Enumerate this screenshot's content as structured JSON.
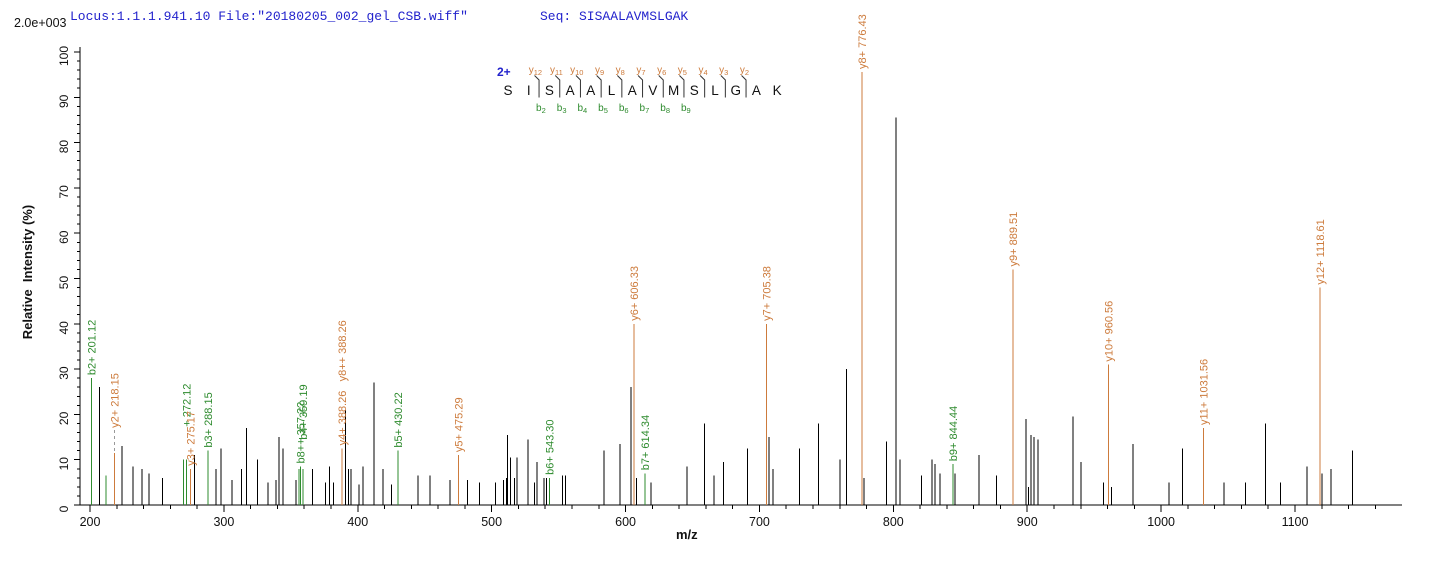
{
  "header": {
    "locus_file": "Locus:1.1.1.941.10 File:\"20180205_002_gel_CSB.wiff\"",
    "seq_label": "Seq: SISAALAVMSLGAK"
  },
  "colors": {
    "header_text": "#2222cc",
    "charge_label": "#2222cc",
    "y_ion": "#cd7b3c",
    "b_ion": "#2e8b2e",
    "peak_black": "#000000",
    "axis": "#000000",
    "leader_gray": "#999999",
    "divider": "#333333"
  },
  "sequence_annotation": {
    "charge": "2+",
    "residues": [
      "S",
      "I",
      "S",
      "A",
      "A",
      "L",
      "A",
      "V",
      "M",
      "S",
      "L",
      "G",
      "A",
      "K"
    ],
    "boundaries": [
      {
        "after_index": 1,
        "y_ion": "y12",
        "b_ion": "b2"
      },
      {
        "after_index": 2,
        "y_ion": "y11",
        "b_ion": "b3"
      },
      {
        "after_index": 3,
        "y_ion": "y10",
        "b_ion": "b4"
      },
      {
        "after_index": 4,
        "y_ion": "y9",
        "b_ion": "b5"
      },
      {
        "after_index": 5,
        "y_ion": "y8",
        "b_ion": "b6"
      },
      {
        "after_index": 6,
        "y_ion": "y7",
        "b_ion": "b7"
      },
      {
        "after_index": 7,
        "y_ion": "y6",
        "b_ion": "b8"
      },
      {
        "after_index": 8,
        "y_ion": "y5",
        "b_ion": "b9"
      },
      {
        "after_index": 9,
        "y_ion": "y4",
        "b_ion": null
      },
      {
        "after_index": 10,
        "y_ion": "y3",
        "b_ion": null
      },
      {
        "after_index": 11,
        "y_ion": "y2",
        "b_ion": null
      }
    ]
  },
  "chart_data": {
    "type": "bar",
    "subtype": "mass-spectrum-stick-plot",
    "title": "",
    "xlabel": "m/z",
    "ylabel": "Relative  Intensity (%)",
    "intensity_reference": "2.0e+003",
    "x_range": [
      192,
      1178
    ],
    "x_ticks_major": [
      200,
      300,
      400,
      500,
      600,
      700,
      800,
      900,
      1000,
      1100
    ],
    "x_minor_step": 20,
    "ylim": [
      0,
      100
    ],
    "y_ticks_major": [
      0,
      10,
      20,
      30,
      40,
      50,
      60,
      70,
      80,
      90,
      100
    ],
    "y_minor_step": 2,
    "grid": false,
    "legend": "none",
    "labeled_peaks": [
      {
        "label": "b2+ 201.12",
        "mz": 201.12,
        "intensity": 28,
        "ion": "b"
      },
      {
        "label": "y2+ 218.15",
        "mz": 218.15,
        "intensity": 11.5,
        "ion": "y",
        "raise": 22,
        "leader": true
      },
      {
        "label": "+ 272.12",
        "mz": 272.12,
        "intensity": 10,
        "ion": "b",
        "raise": 30
      },
      {
        "label": "y3+ 275.17",
        "mz": 275.17,
        "intensity": 8,
        "ion": "y"
      },
      {
        "label": "b3+ 288.15",
        "mz": 288.15,
        "intensity": 12,
        "ion": "b"
      },
      {
        "label": "b8++ 357.22",
        "mz": 357.22,
        "intensity": 8.5,
        "ion": "b"
      },
      {
        "label": "b4+ 359.19",
        "mz": 359.19,
        "intensity": 8,
        "ion": "b",
        "raise": 26
      },
      {
        "label": "y4+ 388.26",
        "mz": 388.26,
        "intensity": 12.5,
        "ion": "y"
      },
      {
        "label": "y8++ 388.26",
        "mz": 388.26,
        "intensity": 12.5,
        "ion": "y",
        "raise": 64
      },
      {
        "label": "b5+ 430.22",
        "mz": 430.22,
        "intensity": 12,
        "ion": "b"
      },
      {
        "label": "y5+ 475.29",
        "mz": 475.29,
        "intensity": 11,
        "ion": "y"
      },
      {
        "label": "b6+ 543.30",
        "mz": 543.3,
        "intensity": 6,
        "ion": "b"
      },
      {
        "label": "y6+ 606.33",
        "mz": 606.33,
        "intensity": 40,
        "ion": "y"
      },
      {
        "label": "b7+ 614.34",
        "mz": 614.34,
        "intensity": 7,
        "ion": "b"
      },
      {
        "label": "y7+ 705.38",
        "mz": 705.38,
        "intensity": 40,
        "ion": "y"
      },
      {
        "label": "y8+ 776.43",
        "mz": 776.43,
        "intensity": 100,
        "ion": "y"
      },
      {
        "label": "b9+ 844.44",
        "mz": 844.44,
        "intensity": 9,
        "ion": "b"
      },
      {
        "label": "y9+ 889.51",
        "mz": 889.51,
        "intensity": 52,
        "ion": "y"
      },
      {
        "label": "y10+ 960.56",
        "mz": 960.56,
        "intensity": 31,
        "ion": "y"
      },
      {
        "label": "y11+ 1031.56",
        "mz": 1031.56,
        "intensity": 17,
        "ion": "y"
      },
      {
        "label": "y12+ 1118.61",
        "mz": 1118.61,
        "intensity": 48,
        "ion": "y"
      }
    ],
    "unlabeled_green_peaks": [
      [
        212,
        6.5
      ],
      [
        270,
        10
      ],
      [
        356,
        8
      ]
    ],
    "unlabeled_peaks": [
      [
        207,
        26
      ],
      [
        224,
        13
      ],
      [
        232,
        8.5
      ],
      [
        239,
        8
      ],
      [
        244,
        7
      ],
      [
        254,
        6
      ],
      [
        278,
        11
      ],
      [
        294,
        8
      ],
      [
        298,
        12.5
      ],
      [
        306,
        5.5
      ],
      [
        313,
        8
      ],
      [
        317,
        17
      ],
      [
        325,
        10
      ],
      [
        333,
        5
      ],
      [
        339,
        5.5
      ],
      [
        341,
        15
      ],
      [
        344,
        12.5
      ],
      [
        354,
        5.5
      ],
      [
        366,
        8
      ],
      [
        376,
        5
      ],
      [
        379,
        8.5
      ],
      [
        382,
        5
      ],
      [
        391,
        21
      ],
      [
        393,
        8
      ],
      [
        395,
        8
      ],
      [
        401,
        4.5
      ],
      [
        404,
        8.5
      ],
      [
        412,
        27
      ],
      [
        419,
        8
      ],
      [
        425,
        4.5
      ],
      [
        445,
        6.5
      ],
      [
        454,
        6.5
      ],
      [
        469,
        5.5
      ],
      [
        482,
        5.5
      ],
      [
        491,
        5
      ],
      [
        503,
        5
      ],
      [
        509,
        5.5
      ],
      [
        511,
        6
      ],
      [
        512,
        15.5
      ],
      [
        514,
        10.5
      ],
      [
        517,
        6
      ],
      [
        519,
        10.5
      ],
      [
        527,
        14.5
      ],
      [
        532,
        5
      ],
      [
        534,
        9.5
      ],
      [
        539,
        6
      ],
      [
        541,
        6
      ],
      [
        553,
        6.5
      ],
      [
        555,
        6.5
      ],
      [
        584,
        12
      ],
      [
        596,
        13.5
      ],
      [
        604,
        26
      ],
      [
        608,
        6
      ],
      [
        619,
        5
      ],
      [
        646,
        8.5
      ],
      [
        659,
        18
      ],
      [
        666,
        6.5
      ],
      [
        673,
        9.5
      ],
      [
        691,
        12.5
      ],
      [
        707,
        15
      ],
      [
        710,
        8
      ],
      [
        730,
        12.5
      ],
      [
        744,
        18
      ],
      [
        760,
        10
      ],
      [
        765,
        30
      ],
      [
        778,
        6
      ],
      [
        795,
        14
      ],
      [
        802,
        85.5
      ],
      [
        805,
        10
      ],
      [
        821,
        6.5
      ],
      [
        829,
        10
      ],
      [
        831,
        9
      ],
      [
        835,
        7
      ],
      [
        846,
        7
      ],
      [
        864,
        11
      ],
      [
        877,
        6.5
      ],
      [
        899,
        19
      ],
      [
        901,
        4
      ],
      [
        903,
        15.5
      ],
      [
        905,
        15
      ],
      [
        908,
        14.5
      ],
      [
        934,
        19.5
      ],
      [
        940,
        9.5
      ],
      [
        957,
        5
      ],
      [
        963,
        4
      ],
      [
        979,
        13.5
      ],
      [
        1006,
        5
      ],
      [
        1016,
        12.5
      ],
      [
        1047,
        5
      ],
      [
        1063,
        5
      ],
      [
        1078,
        18
      ],
      [
        1089,
        5
      ],
      [
        1109,
        8.5
      ],
      [
        1120,
        7
      ],
      [
        1127,
        8
      ],
      [
        1143,
        12
      ]
    ]
  }
}
